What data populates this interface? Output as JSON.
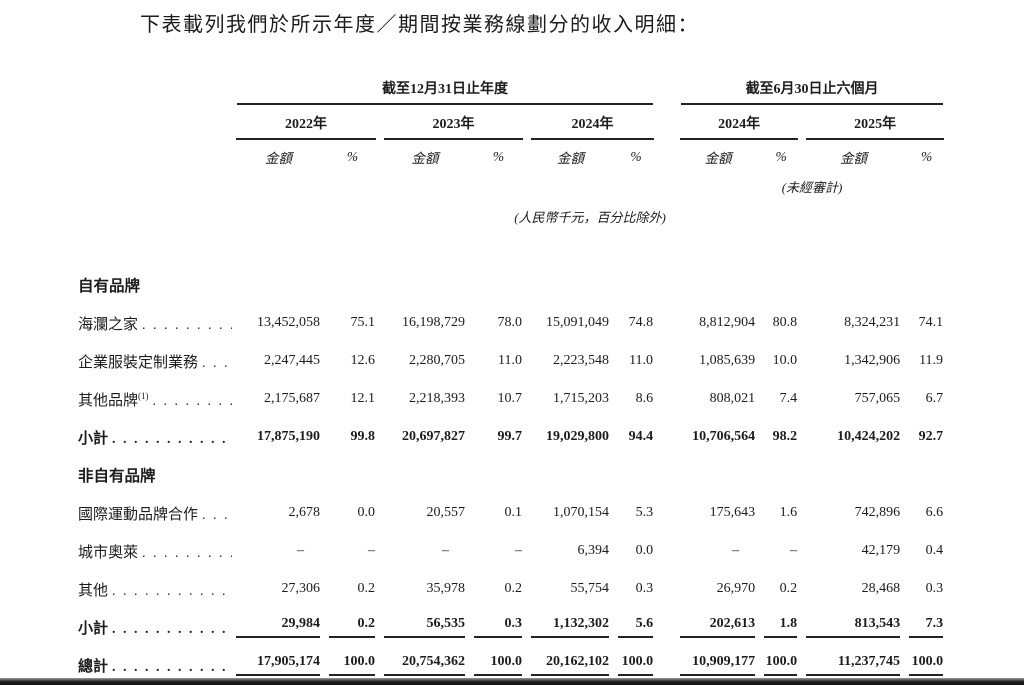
{
  "title": "下表載列我們於所示年度／期間按業務線劃分的收入明細：",
  "table": {
    "groups": [
      {
        "label": "截至12月31日止年度"
      },
      {
        "label": "截至6月30日止六個月"
      }
    ],
    "years": [
      "2022年",
      "2023年",
      "2024年",
      "2024年",
      "2025年"
    ],
    "amount_label": "金額",
    "percent_label": "%",
    "unaudited_note": "(未經審計)",
    "unit_note": "(人民幣千元，百分比除外)",
    "rows": [
      {
        "type": "section",
        "label": "自有品牌",
        "dots": false
      },
      {
        "type": "data",
        "label": "海瀾之家",
        "dots": true,
        "values": [
          "13,452,058",
          "75.1",
          "16,198,729",
          "78.0",
          "15,091,049",
          "74.8",
          "8,812,904",
          "80.8",
          "8,324,231",
          "74.1"
        ]
      },
      {
        "type": "data",
        "label": "企業服裝定制業務",
        "dots": true,
        "values": [
          "2,247,445",
          "12.6",
          "2,280,705",
          "11.0",
          "2,223,548",
          "11.0",
          "1,085,639",
          "10.0",
          "1,342,906",
          "11.9"
        ]
      },
      {
        "type": "data",
        "label": "其他品牌",
        "sup": "(1)",
        "dots": true,
        "values": [
          "2,175,687",
          "12.1",
          "2,218,393",
          "10.7",
          "1,715,203",
          "8.6",
          "808,021",
          "7.4",
          "757,065",
          "6.7"
        ]
      },
      {
        "type": "subtotal",
        "label": "小計",
        "dots": true,
        "rule": "none",
        "values": [
          "17,875,190",
          "99.8",
          "20,697,827",
          "99.7",
          "19,029,800",
          "94.4",
          "10,706,564",
          "98.2",
          "10,424,202",
          "92.7"
        ]
      },
      {
        "type": "section",
        "label": "非自有品牌",
        "dots": false
      },
      {
        "type": "data",
        "label": "國際運動品牌合作",
        "dots": true,
        "values": [
          "2,678",
          "0.0",
          "20,557",
          "0.1",
          "1,070,154",
          "5.3",
          "175,643",
          "1.6",
          "742,896",
          "6.6"
        ]
      },
      {
        "type": "data",
        "label": "城市奧萊",
        "dots": true,
        "values": [
          "–",
          "–",
          "–",
          "–",
          "6,394",
          "0.0",
          "–",
          "–",
          "42,179",
          "0.4"
        ]
      },
      {
        "type": "data",
        "label": "其他",
        "dots": true,
        "values": [
          "27,306",
          "0.2",
          "35,978",
          "0.2",
          "55,754",
          "0.3",
          "26,970",
          "0.2",
          "28,468",
          "0.3"
        ]
      },
      {
        "type": "subtotal",
        "label": "小計",
        "dots": true,
        "rule": "single",
        "values": [
          "29,984",
          "0.2",
          "56,535",
          "0.3",
          "1,132,302",
          "5.6",
          "202,613",
          "1.8",
          "813,543",
          "7.3"
        ]
      },
      {
        "type": "total",
        "label": "總計",
        "dots": true,
        "rule": "double",
        "values": [
          "17,905,174",
          "100.0",
          "20,754,362",
          "100.0",
          "20,162,102",
          "100.0",
          "10,909,177",
          "100.0",
          "11,237,745",
          "100.0"
        ]
      }
    ]
  }
}
